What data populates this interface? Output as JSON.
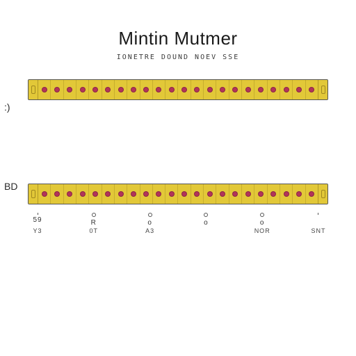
{
  "title": "Mintin Mutmer",
  "subtitle": "IONETRE DOUND NOEV SSE",
  "ruler_background": "#e2c838",
  "dot_color": "#b2345a",
  "cell_count": 22,
  "ruler1": {
    "left_label": ":)"
  },
  "ruler2": {
    "left_label": "BD",
    "axis_top": [
      "59",
      "R",
      "o",
      "o",
      "o",
      ""
    ],
    "axis_bot": [
      "Y3",
      "0T",
      "A3",
      "",
      "NOR",
      "SNT"
    ]
  }
}
